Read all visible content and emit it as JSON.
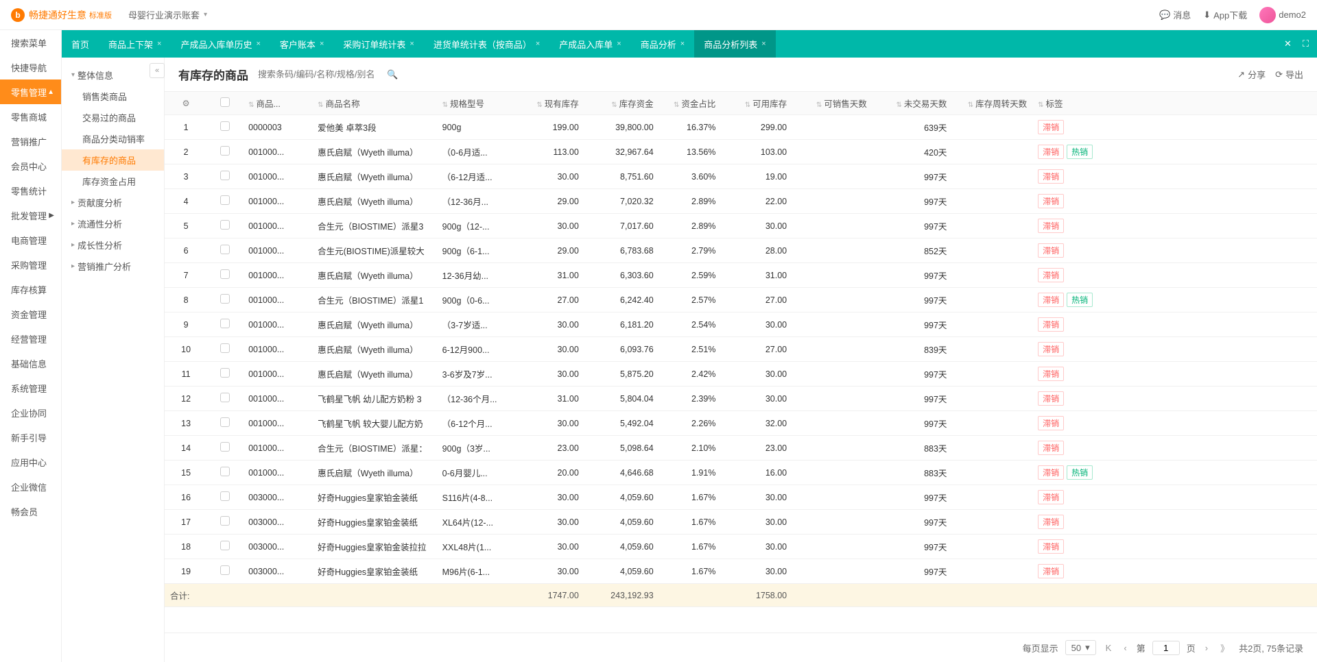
{
  "header": {
    "logo_text": "畅捷通好生意",
    "version": "标准版",
    "company": "母婴行业演示账套",
    "msg_label": "消息",
    "app_label": "App下载",
    "username": "demo2"
  },
  "tabs": {
    "items": [
      {
        "label": "首页",
        "closable": false
      },
      {
        "label": "商品上下架",
        "closable": true
      },
      {
        "label": "产成品入库单历史",
        "closable": true
      },
      {
        "label": "客户账本",
        "closable": true
      },
      {
        "label": "采购订单统计表",
        "closable": true
      },
      {
        "label": "进货单统计表（按商品）",
        "closable": true
      },
      {
        "label": "产成品入库单",
        "closable": true
      },
      {
        "label": "商品分析",
        "closable": true
      },
      {
        "label": "商品分析列表",
        "closable": true
      }
    ],
    "active_index": 8
  },
  "left_nav": {
    "items": [
      {
        "label": "搜索菜单"
      },
      {
        "label": "快捷导航"
      },
      {
        "label": "零售管理",
        "active": true,
        "caret": "▲"
      },
      {
        "label": "零售商城"
      },
      {
        "label": "营销推广"
      },
      {
        "label": "会员中心"
      },
      {
        "label": "零售统计"
      },
      {
        "label": "批发管理",
        "caret": "▶"
      },
      {
        "label": "电商管理"
      },
      {
        "label": "采购管理"
      },
      {
        "label": "库存核算"
      },
      {
        "label": "资金管理"
      },
      {
        "label": "经营管理"
      },
      {
        "label": "基础信息"
      },
      {
        "label": "系统管理"
      },
      {
        "label": "企业协同"
      },
      {
        "label": "新手引导"
      },
      {
        "label": "应用中心"
      },
      {
        "label": "企业微信"
      },
      {
        "label": "畅会员"
      }
    ]
  },
  "sub_panel": {
    "groups": [
      {
        "label": "整体信息",
        "open": true,
        "items": [
          {
            "label": "销售类商品"
          },
          {
            "label": "交易过的商品"
          },
          {
            "label": "商品分类动销率"
          },
          {
            "label": "有库存的商品",
            "active": true
          },
          {
            "label": "库存资金占用"
          }
        ]
      },
      {
        "label": "贡献度分析",
        "open": false,
        "items": []
      },
      {
        "label": "流通性分析",
        "open": false,
        "items": []
      },
      {
        "label": "成长性分析",
        "open": false,
        "items": []
      },
      {
        "label": "营销推广分析",
        "open": false,
        "items": []
      }
    ]
  },
  "content": {
    "title": "有库存的商品",
    "search_placeholder": "搜索条码/编码/名称/规格/别名",
    "share_label": "分享",
    "export_label": "导出"
  },
  "table": {
    "columns": [
      {
        "key": "idx",
        "label": "",
        "align": "center"
      },
      {
        "key": "chk",
        "label": "",
        "align": "center"
      },
      {
        "key": "code",
        "label": "商品...",
        "sortable": true
      },
      {
        "key": "name",
        "label": "商品名称",
        "sortable": true
      },
      {
        "key": "spec",
        "label": "规格型号",
        "sortable": true
      },
      {
        "key": "stock",
        "label": "现有库存",
        "sortable": true,
        "align": "right"
      },
      {
        "key": "fund",
        "label": "库存资金",
        "sortable": true,
        "align": "right"
      },
      {
        "key": "pct",
        "label": "资金占比",
        "sortable": true,
        "align": "right"
      },
      {
        "key": "avail",
        "label": "可用库存",
        "sortable": true,
        "align": "right"
      },
      {
        "key": "sale",
        "label": "可销售天数",
        "sortable": true,
        "align": "right"
      },
      {
        "key": "notrade",
        "label": "未交易天数",
        "sortable": true,
        "align": "right"
      },
      {
        "key": "turn",
        "label": "库存周转天数",
        "sortable": true,
        "align": "right"
      },
      {
        "key": "tag",
        "label": "标签",
        "sortable": true
      }
    ],
    "rows": [
      {
        "idx": 1,
        "code": "0000003",
        "name": "爱他美 卓萃3段",
        "spec": "900g",
        "stock": "199.00",
        "fund": "39,800.00",
        "pct": "16.37%",
        "avail": "299.00",
        "sale": "",
        "notrade": "639天",
        "turn": "",
        "tags": [
          "滞销"
        ]
      },
      {
        "idx": 2,
        "code": "001000...",
        "name": "惠氏启赋（Wyeth illuma）",
        "spec": "（0-6月适...",
        "stock": "113.00",
        "fund": "32,967.64",
        "pct": "13.56%",
        "avail": "103.00",
        "sale": "",
        "notrade": "420天",
        "turn": "",
        "tags": [
          "滞销",
          "热销"
        ]
      },
      {
        "idx": 3,
        "code": "001000...",
        "name": "惠氏启赋（Wyeth illuma）",
        "spec": "（6-12月适...",
        "stock": "30.00",
        "fund": "8,751.60",
        "pct": "3.60%",
        "avail": "19.00",
        "sale": "",
        "notrade": "997天",
        "turn": "",
        "tags": [
          "滞销"
        ]
      },
      {
        "idx": 4,
        "code": "001000...",
        "name": "惠氏启赋（Wyeth illuma）",
        "spec": "（12-36月...",
        "stock": "29.00",
        "fund": "7,020.32",
        "pct": "2.89%",
        "avail": "22.00",
        "sale": "",
        "notrade": "997天",
        "turn": "",
        "tags": [
          "滞销"
        ]
      },
      {
        "idx": 5,
        "code": "001000...",
        "name": "合生元（BIOSTIME）派星3",
        "spec": "900g（12-...",
        "stock": "30.00",
        "fund": "7,017.60",
        "pct": "2.89%",
        "avail": "30.00",
        "sale": "",
        "notrade": "997天",
        "turn": "",
        "tags": [
          "滞销"
        ]
      },
      {
        "idx": 6,
        "code": "001000...",
        "name": "合生元(BIOSTIME)派星较大",
        "spec": "900g（6-1...",
        "stock": "29.00",
        "fund": "6,783.68",
        "pct": "2.79%",
        "avail": "28.00",
        "sale": "",
        "notrade": "852天",
        "turn": "",
        "tags": [
          "滞销"
        ]
      },
      {
        "idx": 7,
        "code": "001000...",
        "name": "惠氏启赋（Wyeth illuma）",
        "spec": "12-36月幼...",
        "stock": "31.00",
        "fund": "6,303.60",
        "pct": "2.59%",
        "avail": "31.00",
        "sale": "",
        "notrade": "997天",
        "turn": "",
        "tags": [
          "滞销"
        ]
      },
      {
        "idx": 8,
        "code": "001000...",
        "name": "合生元（BIOSTIME）派星1",
        "spec": "900g（0-6...",
        "stock": "27.00",
        "fund": "6,242.40",
        "pct": "2.57%",
        "avail": "27.00",
        "sale": "",
        "notrade": "997天",
        "turn": "",
        "tags": [
          "滞销",
          "热销"
        ]
      },
      {
        "idx": 9,
        "code": "001000...",
        "name": "惠氏启赋（Wyeth illuma）",
        "spec": "（3-7岁适...",
        "stock": "30.00",
        "fund": "6,181.20",
        "pct": "2.54%",
        "avail": "30.00",
        "sale": "",
        "notrade": "997天",
        "turn": "",
        "tags": [
          "滞销"
        ]
      },
      {
        "idx": 10,
        "code": "001000...",
        "name": "惠氏启赋（Wyeth illuma）",
        "spec": "6-12月900...",
        "stock": "30.00",
        "fund": "6,093.76",
        "pct": "2.51%",
        "avail": "27.00",
        "sale": "",
        "notrade": "839天",
        "turn": "",
        "tags": [
          "滞销"
        ]
      },
      {
        "idx": 11,
        "code": "001000...",
        "name": "惠氏启赋（Wyeth illuma）",
        "spec": "3-6岁及7岁...",
        "stock": "30.00",
        "fund": "5,875.20",
        "pct": "2.42%",
        "avail": "30.00",
        "sale": "",
        "notrade": "997天",
        "turn": "",
        "tags": [
          "滞销"
        ]
      },
      {
        "idx": 12,
        "code": "001000...",
        "name": "飞鹤星飞帆 幼儿配方奶粉 3",
        "spec": "（12-36个月...",
        "stock": "31.00",
        "fund": "5,804.04",
        "pct": "2.39%",
        "avail": "30.00",
        "sale": "",
        "notrade": "997天",
        "turn": "",
        "tags": [
          "滞销"
        ]
      },
      {
        "idx": 13,
        "code": "001000...",
        "name": "飞鹤星飞帆 较大婴儿配方奶",
        "spec": "（6-12个月...",
        "stock": "30.00",
        "fund": "5,492.04",
        "pct": "2.26%",
        "avail": "32.00",
        "sale": "",
        "notrade": "997天",
        "turn": "",
        "tags": [
          "滞销"
        ]
      },
      {
        "idx": 14,
        "code": "001000...",
        "name": "合生元（BIOSTIME）派星：",
        "spec": "900g（3岁...",
        "stock": "23.00",
        "fund": "5,098.64",
        "pct": "2.10%",
        "avail": "23.00",
        "sale": "",
        "notrade": "883天",
        "turn": "",
        "tags": [
          "滞销"
        ]
      },
      {
        "idx": 15,
        "code": "001000...",
        "name": "惠氏启赋（Wyeth illuma）",
        "spec": "0-6月婴儿...",
        "stock": "20.00",
        "fund": "4,646.68",
        "pct": "1.91%",
        "avail": "16.00",
        "sale": "",
        "notrade": "883天",
        "turn": "",
        "tags": [
          "滞销",
          "热销"
        ]
      },
      {
        "idx": 16,
        "code": "003000...",
        "name": "好奇Huggies皇家铂金装纸",
        "spec": "S116片(4-8...",
        "stock": "30.00",
        "fund": "4,059.60",
        "pct": "1.67%",
        "avail": "30.00",
        "sale": "",
        "notrade": "997天",
        "turn": "",
        "tags": [
          "滞销"
        ]
      },
      {
        "idx": 17,
        "code": "003000...",
        "name": "好奇Huggies皇家铂金装纸",
        "spec": "XL64片(12-...",
        "stock": "30.00",
        "fund": "4,059.60",
        "pct": "1.67%",
        "avail": "30.00",
        "sale": "",
        "notrade": "997天",
        "turn": "",
        "tags": [
          "滞销"
        ]
      },
      {
        "idx": 18,
        "code": "003000...",
        "name": "好奇Huggies皇家铂金装拉拉",
        "spec": "XXL48片(1...",
        "stock": "30.00",
        "fund": "4,059.60",
        "pct": "1.67%",
        "avail": "30.00",
        "sale": "",
        "notrade": "997天",
        "turn": "",
        "tags": [
          "滞销"
        ]
      },
      {
        "idx": 19,
        "code": "003000...",
        "name": "好奇Huggies皇家铂金装纸",
        "spec": "M96片(6-1...",
        "stock": "30.00",
        "fund": "4,059.60",
        "pct": "1.67%",
        "avail": "30.00",
        "sale": "",
        "notrade": "997天",
        "turn": "",
        "tags": [
          "滞销"
        ]
      }
    ],
    "sum": {
      "label": "合计:",
      "stock": "1747.00",
      "fund": "243,192.93",
      "avail": "1758.00"
    }
  },
  "pagination": {
    "per_page_label": "每页显示",
    "per_page": "50",
    "page_prefix": "第",
    "page": "1",
    "page_suffix": "页",
    "total_label": "共2页, 75条记录"
  },
  "colors": {
    "brand_teal": "#00b8a9",
    "brand_teal_dark": "#009688",
    "accent_orange": "#ff8c1a",
    "tag_red": "#ff5b5b",
    "tag_green": "#00b377",
    "sum_bg": "#fdf6e3"
  }
}
